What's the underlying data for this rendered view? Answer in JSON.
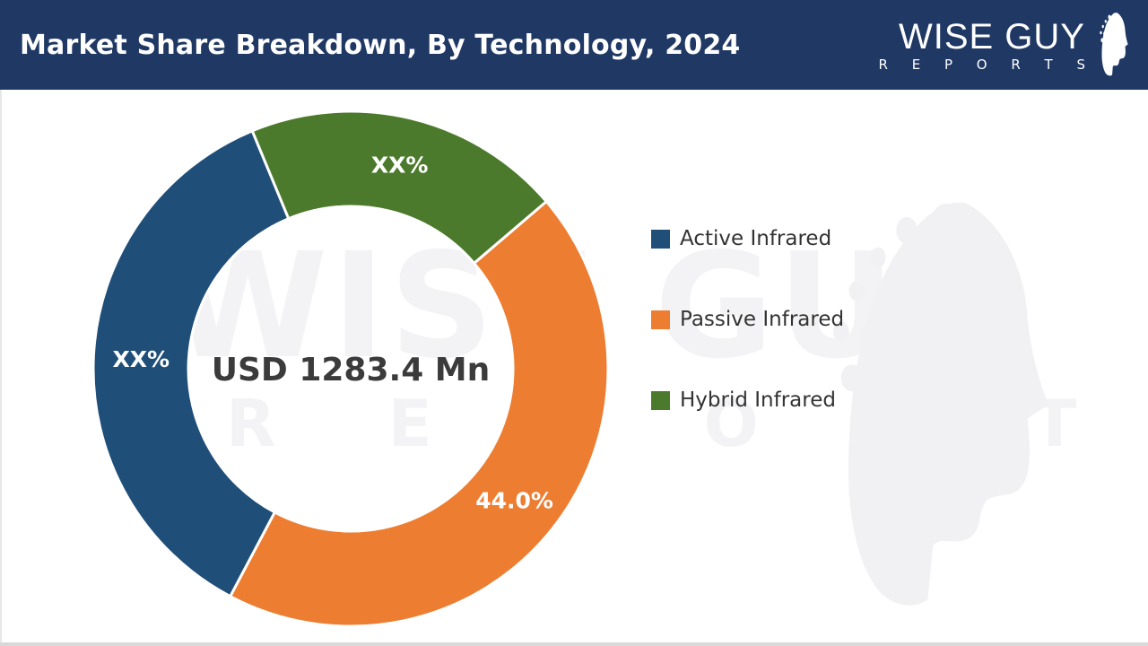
{
  "header": {
    "title": "Market Share Breakdown, By Technology, 2024",
    "logo": {
      "name": "WISE GUY",
      "sub": "R E P O R T S"
    }
  },
  "chart_data": {
    "type": "pie",
    "variant": "donut",
    "title": "Market Share Breakdown, By Technology, 2024",
    "center_label": "USD 1283.4 Mn",
    "start_angle_deg": -22.5,
    "segments": [
      {
        "name": "Hybrid Infrared",
        "percent": 20.0,
        "label": "XX%",
        "color": "#4C7A2C"
      },
      {
        "name": "Passive Infrared",
        "percent": 44.0,
        "label": "44.0%",
        "color": "#ED7D31"
      },
      {
        "name": "Active Infrared",
        "percent": 36.0,
        "label": "XX%",
        "color": "#1F4E79"
      }
    ],
    "legend": {
      "position": "right",
      "items": [
        {
          "label": "Active Infrared",
          "color": "#1F4E79"
        },
        {
          "label": "Passive Infrared",
          "color": "#ED7D31"
        },
        {
          "label": "Hybrid Infrared",
          "color": "#4C7A2C"
        }
      ]
    }
  },
  "watermark": {
    "line1": "WISE GUY",
    "line2": "R E P O R T S"
  },
  "colors": {
    "header_bg": "#203864",
    "center_text": "#3B3B3B",
    "legend_text": "#333333"
  }
}
